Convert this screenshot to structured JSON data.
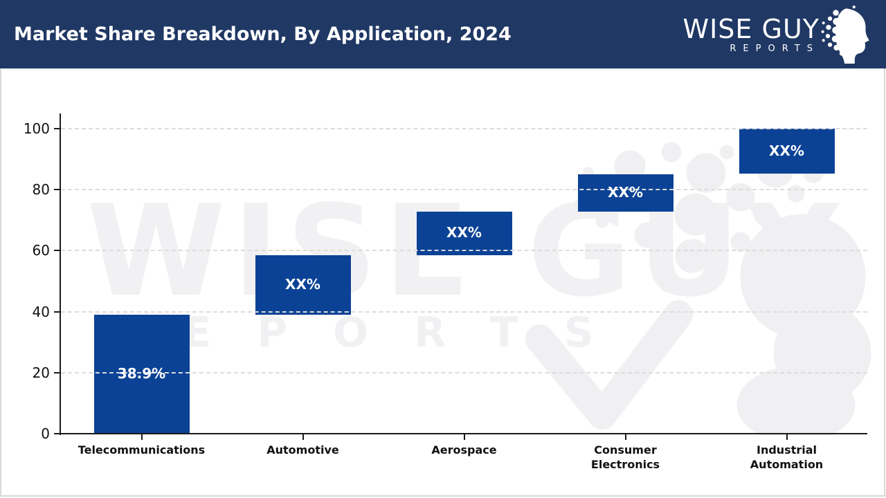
{
  "header": {
    "title": "Market Share Breakdown, By Application, 2024",
    "logo": {
      "line1": "WISE GUY",
      "line2": "REPORTS"
    }
  },
  "watermark": {
    "line1": "WISE GUY",
    "line2": "REPORTS"
  },
  "colors": {
    "header_bg": "#203864",
    "bar": "#0b4295",
    "grid": "#dcdcdc",
    "axis": "#1a1a1a",
    "bar_label": "#ffffff",
    "watermark": "#f1f1f3"
  },
  "chart_data": {
    "type": "bar",
    "subtype": "waterfall",
    "title": "Market Share Breakdown, By Application, 2024",
    "xlabel": "",
    "ylabel": "",
    "categories": [
      "Telecommunications",
      "Automotive",
      "Aerospace",
      "Consumer\nElectronics",
      "Industrial\nAutomation"
    ],
    "bars": [
      {
        "category": "Telecommunications",
        "start": 0,
        "end": 38.9,
        "label": "38.9%"
      },
      {
        "category": "Automotive",
        "start": 39.1,
        "end": 58.4,
        "label": "XX%"
      },
      {
        "category": "Aerospace",
        "start": 58.6,
        "end": 72.7,
        "label": "XX%"
      },
      {
        "category": "Consumer Electronics",
        "start": 72.9,
        "end": 85.1,
        "label": "XX%"
      },
      {
        "category": "Industrial Automation",
        "start": 85.2,
        "end": 100,
        "label": "XX%"
      }
    ],
    "y_ticks": [
      0,
      20,
      40,
      60,
      80,
      100
    ],
    "ylim": [
      0,
      100
    ],
    "grid": "horizontal-dashed",
    "legend": "none",
    "bar_color": "#0b4295",
    "label_color": "#ffffff"
  }
}
